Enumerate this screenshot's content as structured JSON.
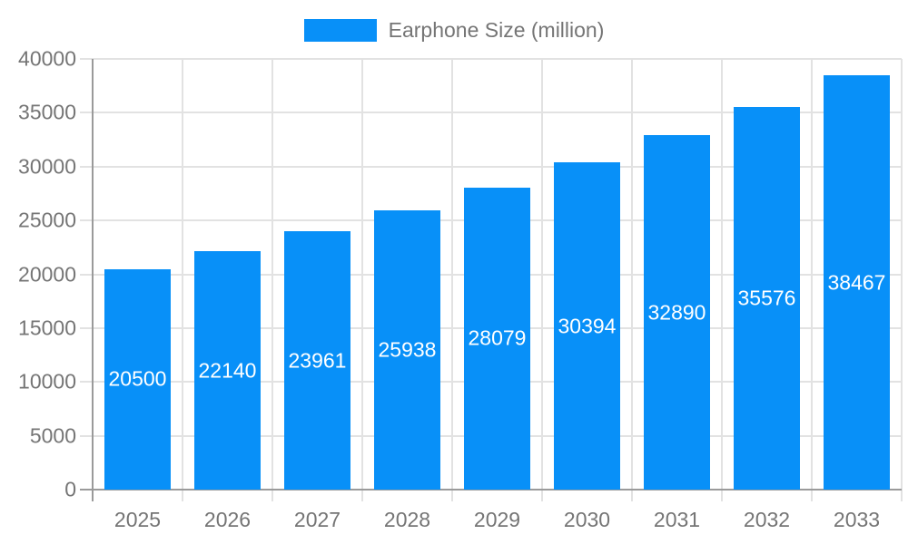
{
  "legend": {
    "label": "Earphone Size (million)"
  },
  "colors": {
    "bar": "#0890f8",
    "axis_text": "#757575",
    "axis_line": "#9a9a9a",
    "gridline": "#e2e2e2",
    "bar_label": "#ffffff"
  },
  "chart_data": {
    "type": "bar",
    "title": "",
    "categories": [
      "2025",
      "2026",
      "2027",
      "2028",
      "2029",
      "2030",
      "2031",
      "2032",
      "2033"
    ],
    "values": [
      20500,
      22140,
      23961,
      25938,
      28079,
      30394,
      32890,
      35576,
      38467
    ],
    "series_name": "Earphone Size (million)",
    "xlabel": "",
    "ylabel": "",
    "ylim": [
      0,
      40000
    ],
    "ytick_step": 5000,
    "ytick_labels": [
      "0",
      "5000",
      "10000",
      "15000",
      "20000",
      "25000",
      "30000",
      "35000",
      "40000"
    ],
    "grid": true,
    "legend_position": "top-center",
    "value_labels": "inside-middle"
  }
}
